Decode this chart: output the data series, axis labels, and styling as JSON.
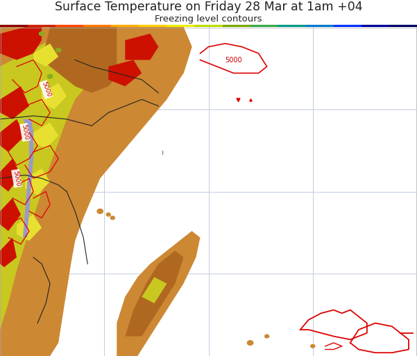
{
  "title": "Surface Temperature on Friday 28 Mar at 1am +04",
  "subtitle": "Freezing level contours",
  "title_fontsize": 12.5,
  "subtitle_fontsize": 9.5,
  "fig_width": 6.01,
  "fig_height": 5.14,
  "dpi": 100,
  "header_bg": "#f5f5f5",
  "map_ocean_color": "#d0d8f0",
  "grid_color": "#b8c4d8",
  "contour_color": "#dd0000",
  "border_color": "#222222",
  "title_color": "#222222",
  "orange": "#cc8833",
  "dark_orange": "#b06820",
  "yellow_green": "#c8c820",
  "bright_yellow": "#e8e030",
  "red_high": "#cc1100",
  "green_patch": "#88aa22",
  "river_blue": "#9999cc"
}
